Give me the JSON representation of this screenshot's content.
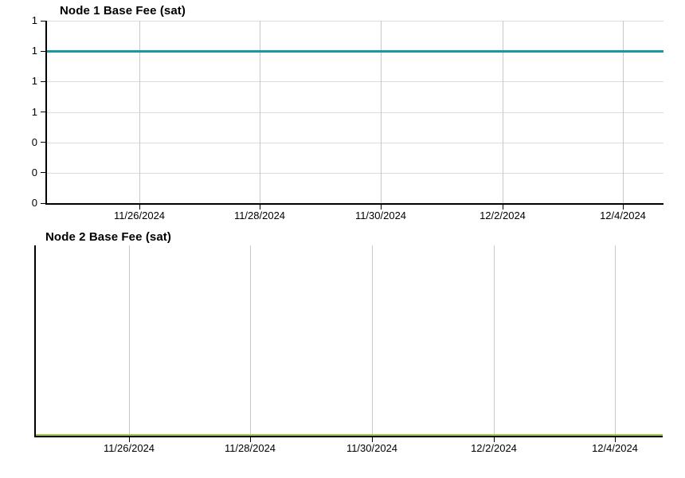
{
  "page": {
    "background_color": "#ffffff",
    "text_color": "#000000",
    "gridline_color": "#c8c8c8",
    "axis_color": "#000000"
  },
  "charts": [
    {
      "title": "Node 1 Base Fee (sat)",
      "y_tick_labels_top_to_bottom": [
        "1",
        "1",
        "1",
        "1",
        "0",
        "0",
        "0"
      ],
      "x_tick_labels": [
        "11/26/2024",
        "11/28/2024",
        "11/30/2024",
        "12/2/2024",
        "12/4/2024"
      ],
      "line_color": "#1699a0"
    },
    {
      "title": "Node 2 Base Fee (sat)",
      "y_tick_labels_top_to_bottom": [],
      "x_tick_labels": [
        "11/26/2024",
        "11/28/2024",
        "11/30/2024",
        "12/2/2024",
        "12/4/2024"
      ],
      "line_color": "#9acd32"
    }
  ],
  "chart_data": [
    {
      "type": "line",
      "title": "Node 1 Base Fee (sat)",
      "xlabel": "",
      "ylabel": "",
      "x_tick_labels": [
        "11/26/2024",
        "11/28/2024",
        "11/30/2024",
        "12/2/2024",
        "12/4/2024"
      ],
      "y_tick_labels_top_to_bottom": [
        "1",
        "1",
        "1",
        "1",
        "0",
        "0",
        "0"
      ],
      "ylim": [
        0,
        1.2
      ],
      "y_tick_step": 0.2,
      "series": [
        {
          "name": "Node 1 Base Fee (sat)",
          "constant_value": 1,
          "x_span": [
            "11/26/2024",
            "12/4/2024"
          ],
          "color": "#1699a0"
        }
      ],
      "grid": "horizontal-and-vertical",
      "legend": "none"
    },
    {
      "type": "line",
      "title": "Node 2 Base Fee (sat)",
      "xlabel": "",
      "ylabel": "",
      "x_tick_labels": [
        "11/26/2024",
        "11/28/2024",
        "11/30/2024",
        "12/2/2024",
        "12/4/2024"
      ],
      "y_tick_labels_top_to_bottom": [],
      "series": [
        {
          "name": "Node 2 Base Fee (sat)",
          "constant_value": 0,
          "x_span": [
            "11/26/2024",
            "12/4/2024"
          ],
          "color": "#9acd32"
        }
      ],
      "grid": "vertical-only",
      "legend": "none"
    }
  ]
}
